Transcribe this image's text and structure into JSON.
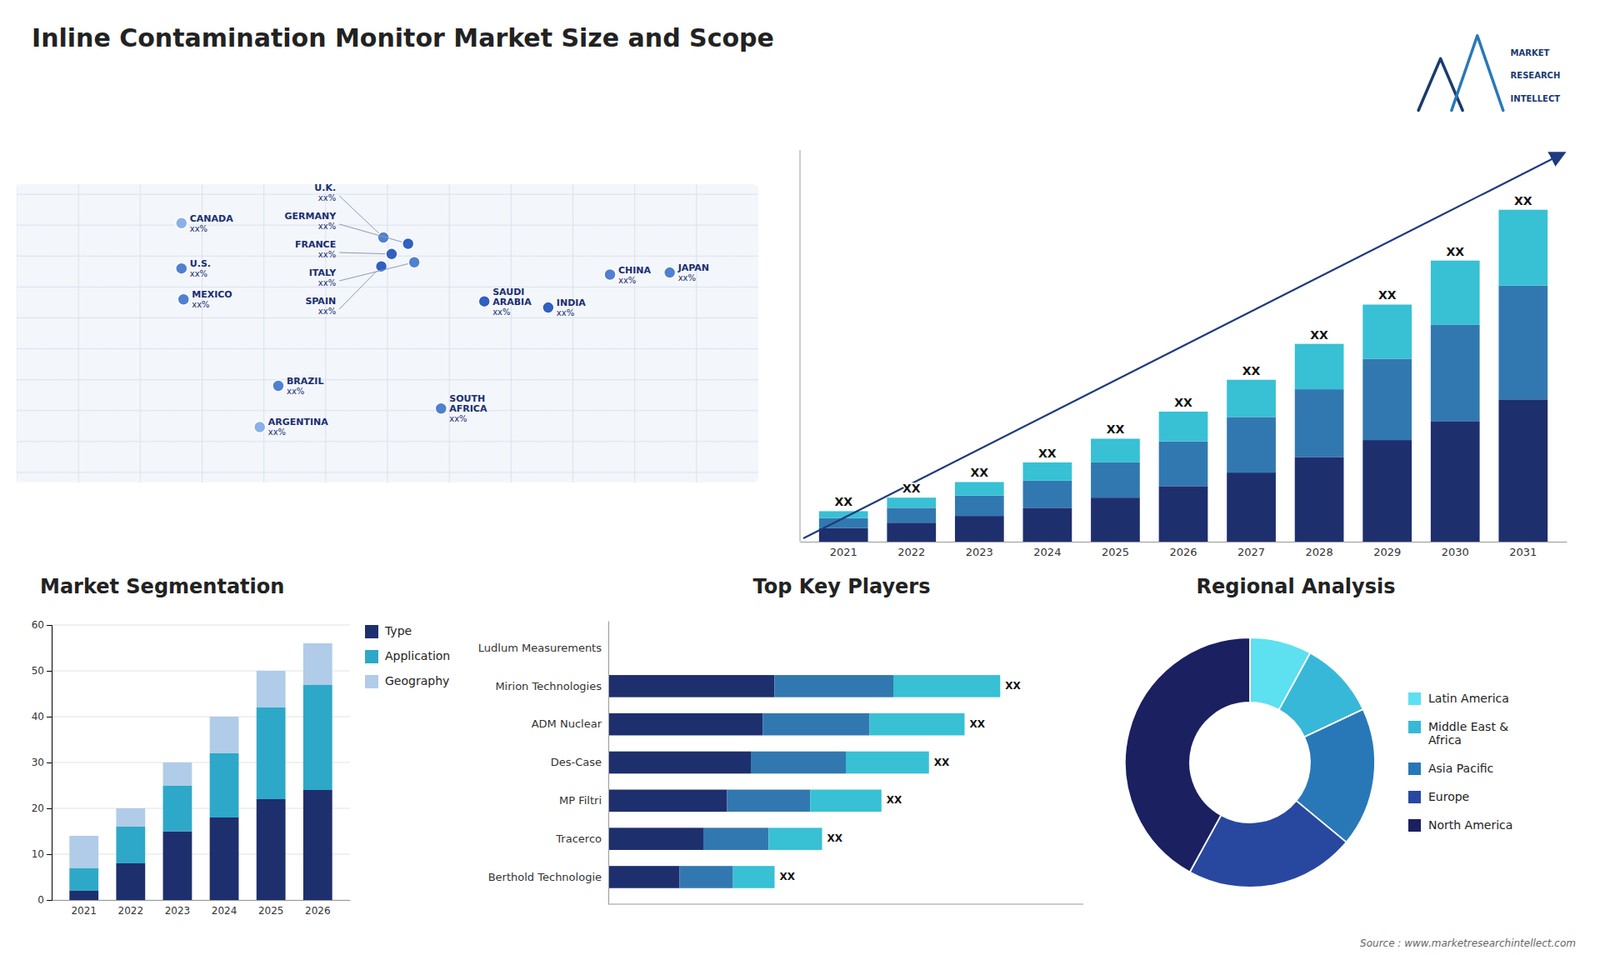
{
  "chart_data": [
    {
      "type": "bar",
      "title": "Inline Contamination Monitor Market Size and Scope",
      "stacked": true,
      "categories": [
        "2021",
        "2022",
        "2023",
        "2024",
        "2025",
        "2026",
        "2027",
        "2028",
        "2029",
        "2030",
        "2031"
      ],
      "series": [
        {
          "color": "#1e2f6e",
          "values": [
            2.0,
            2.8,
            3.8,
            5.0,
            6.5,
            8.2,
            10.2,
            12.5,
            15.0,
            17.8,
            21.0
          ]
        },
        {
          "color": "#3278b0",
          "values": [
            1.5,
            2.2,
            3.0,
            4.0,
            5.2,
            6.6,
            8.2,
            10.0,
            12.0,
            14.2,
            16.8
          ]
        },
        {
          "color": "#38c0d4",
          "values": [
            1.0,
            1.5,
            2.0,
            2.7,
            3.5,
            4.4,
            5.5,
            6.7,
            8.0,
            9.5,
            11.2
          ]
        }
      ],
      "value_labels": [
        "XX",
        "XX",
        "XX",
        "XX",
        "XX",
        "XX",
        "XX",
        "XX",
        "XX",
        "XX",
        "XX"
      ],
      "ylim": [
        0,
        57.82
      ],
      "tick_labels": "x",
      "annotations": [
        "MARKET",
        "RESEARCH",
        "INTELLECT",
        "Source : www.marketresearchintellect.com"
      ]
    },
    {
      "type": "bar",
      "title": "Market Segmentation",
      "stacked": true,
      "categories": [
        "2021",
        "2022",
        "2023",
        "2024",
        "2025",
        "2026"
      ],
      "series": [
        {
          "name": "Type",
          "color": "#1e2f6e",
          "values": [
            2,
            8,
            15,
            18,
            22,
            24
          ]
        },
        {
          "name": "Application",
          "color": "#2ea8c8",
          "values": [
            5,
            8,
            10,
            14,
            20,
            23
          ]
        },
        {
          "name": "Geography",
          "color": "#b0cce8",
          "values": [
            7,
            4,
            5,
            8,
            8,
            9
          ]
        }
      ],
      "ylim": [
        0,
        60
      ],
      "yticks": [
        0,
        10,
        20,
        30,
        40,
        50,
        60
      ],
      "grid": true,
      "legend": "right"
    },
    {
      "type": "bar",
      "title": "Top Key Players",
      "orientation": "horizontal",
      "stacked": true,
      "categories": [
        "Ludlum Measurements",
        "Mirion Technologies",
        "ADM Nuclear",
        "Des-Case",
        "MP Filtri",
        "Tracerco",
        "Berthold Technologie"
      ],
      "series": [
        {
          "color": "#1e2f6e",
          "values": [
            0,
            28,
            26,
            24,
            20,
            16,
            12
          ]
        },
        {
          "color": "#3278b0",
          "values": [
            0,
            20,
            18,
            16,
            14,
            11,
            9
          ]
        },
        {
          "color": "#38c0d4",
          "values": [
            0,
            18,
            16,
            14,
            12,
            9,
            7
          ]
        }
      ],
      "value_labels": [
        null,
        "XX",
        "XX",
        "XX",
        "XX",
        "XX",
        "XX"
      ],
      "xlim": [
        0,
        80
      ],
      "tick_labels": "y"
    },
    {
      "type": "pie",
      "title": "Regional Analysis",
      "categories": [
        "Latin America",
        "Middle East &\nAfrica",
        "Asia Pacific",
        "Europe",
        "North America"
      ],
      "values": [
        8,
        10,
        18,
        22,
        42
      ],
      "colors": [
        "#5de0f0",
        "#38b8d8",
        "#2878b8",
        "#2848a0",
        "#1a2060"
      ],
      "legend": "right"
    },
    {
      "type": "map",
      "categories": [
        "CANADA",
        "U.S.",
        "MEXICO",
        "BRAZIL",
        "ARGENTINA",
        "U.K.",
        "FRANCE",
        "SPAIN",
        "GERMANY",
        "ITALY",
        "SAUDI\nARABIA",
        "SOUTH\nAFRICA",
        "CHINA",
        "INDIA",
        "JAPAN"
      ],
      "value_labels": [
        "xx%",
        "xx%",
        "xx%",
        "xx%",
        "xx%",
        "xx%",
        "xx%",
        "xx%",
        "xx%",
        "xx%",
        "xx%",
        "xx%",
        "xx%",
        "xx%",
        "xx%"
      ],
      "colors": [
        "#8ab0e8",
        "#5080d0",
        "#5080d0",
        "#5080d0",
        "#8ab0e8",
        "#5080d0",
        "#3060c0",
        "#3060c0",
        "#3060c0",
        "#5080d0",
        "#3060c0",
        "#5080d0",
        "#5080d0",
        "#3060c0",
        "#5080d0"
      ]
    }
  ]
}
